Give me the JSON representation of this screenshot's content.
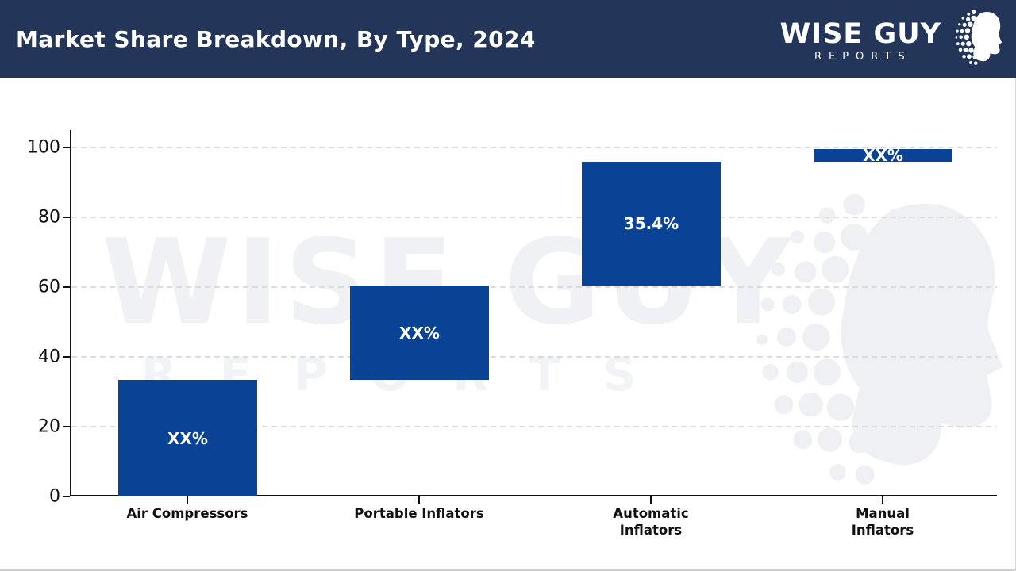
{
  "header": {
    "title": "Market Share Breakdown, By Type, 2024",
    "bg_color": "#233659",
    "logo": {
      "line1": "WISE GUY",
      "line2": "REPORTS"
    }
  },
  "watermark": {
    "line1": "WISE GUY",
    "line2": "REPORTS"
  },
  "chart_data": {
    "type": "bar",
    "subtype": "waterfall-stacked-percentage",
    "title": "Market Share Breakdown, By Type, 2024",
    "categories": [
      "Air Compressors",
      "Portable Inflators",
      "Automatic\nInflators",
      "Manual Inflators"
    ],
    "segments": [
      {
        "category": "Air Compressors",
        "start": 0,
        "end": 33.3,
        "label": "XX%"
      },
      {
        "category": "Portable Inflators",
        "start": 33.3,
        "end": 60.4,
        "label": "XX%"
      },
      {
        "category": "Automatic Inflators",
        "start": 60.4,
        "end": 95.8,
        "label": "35.4%",
        "value": 35.4
      },
      {
        "category": "Manual Inflators",
        "start": 95.8,
        "end": 99.5,
        "label": "XX%"
      }
    ],
    "yticks": [
      0,
      20,
      40,
      60,
      80,
      100
    ],
    "ylim": [
      0,
      105
    ],
    "xlabel": "",
    "ylabel": "",
    "grid": "horizontal-dashed",
    "legend": "none",
    "bar_color": "#0a4396",
    "bar_label_color": "#ffffff",
    "grid_color": "#dcdcdc",
    "axis_color": "#111111",
    "tick_label_color": "#111111"
  }
}
